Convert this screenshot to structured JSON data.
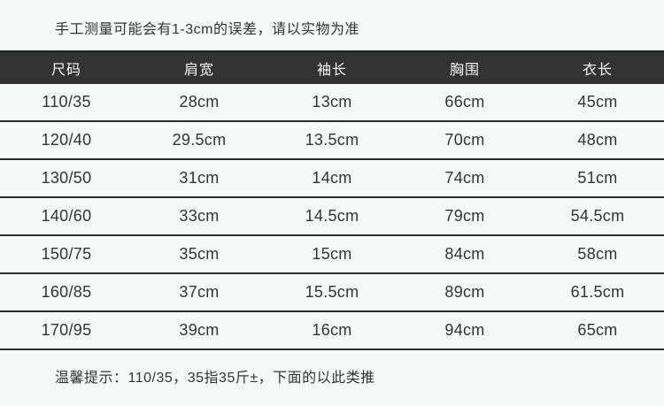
{
  "page": {
    "top_note": "手工测量可能会有1-3cm的误差，请以实物为准",
    "bottom_note": "温馨提示：110/35，35指35斤±，下面的以此类推"
  },
  "colors": {
    "background": "#f7f8f8",
    "header_bg": "#333333",
    "header_text": "#f5f5f5",
    "body_text": "#333333",
    "row_divider": "#2b2b2b"
  },
  "chart_data": {
    "type": "table",
    "title": "",
    "columns": [
      "尺码",
      "肩宽",
      "袖长",
      "胸围",
      "衣长"
    ],
    "rows": [
      [
        "110/35",
        "28cm",
        "13cm",
        "66cm",
        "45cm"
      ],
      [
        "120/40",
        "29.5cm",
        "13.5cm",
        "70cm",
        "48cm"
      ],
      [
        "130/50",
        "31cm",
        "14cm",
        "74cm",
        "51cm"
      ],
      [
        "140/60",
        "33cm",
        "14.5cm",
        "79cm",
        "54.5cm"
      ],
      [
        "150/75",
        "35cm",
        "15cm",
        "84cm",
        "58cm"
      ],
      [
        "160/85",
        "37cm",
        "15.5cm",
        "89cm",
        "61.5cm"
      ],
      [
        "170/95",
        "39cm",
        "16cm",
        "94cm",
        "65cm"
      ]
    ],
    "notes": {
      "above_table": "手工测量可能会有1-3cm的误差，请以实物为准",
      "below_table": "温馨提示：110/35，35指35斤±，下面的以此类推"
    }
  }
}
